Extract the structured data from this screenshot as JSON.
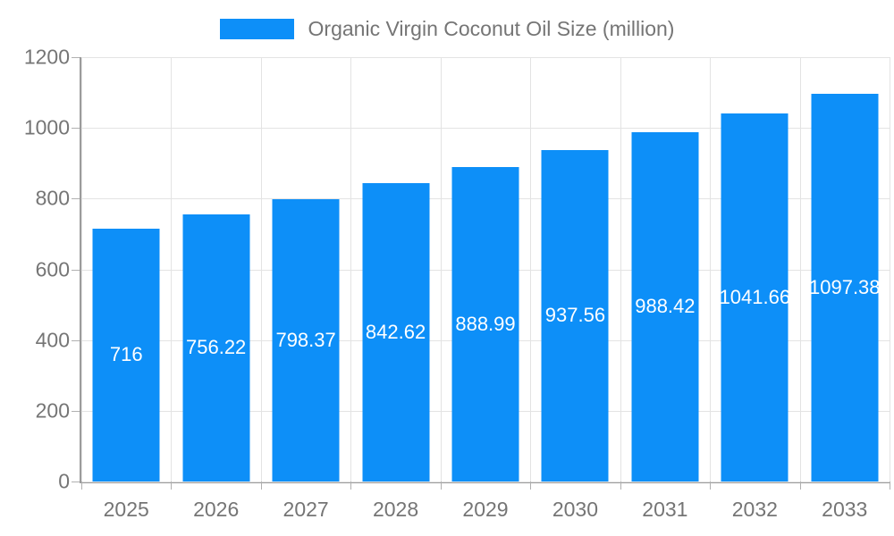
{
  "legend": {
    "items": [
      {
        "label": "Organic Virgin Coconut Oil Size (million)",
        "swatch_color": "#0D8FF8"
      }
    ]
  },
  "chart_data": {
    "type": "bar",
    "title": "",
    "xlabel": "",
    "ylabel": "",
    "categories": [
      "2025",
      "2026",
      "2027",
      "2028",
      "2029",
      "2030",
      "2031",
      "2032",
      "2033"
    ],
    "series": [
      {
        "name": "Organic Virgin Coconut Oil Size (million)",
        "values": [
          716,
          756.22,
          798.37,
          842.62,
          888.99,
          937.56,
          988.42,
          1041.66,
          1097.38
        ]
      }
    ],
    "bar_value_labels": [
      "716",
      "756.22",
      "798.37",
      "842.62",
      "888.99",
      "937.56",
      "988.42",
      "1041.66",
      "1097.38"
    ],
    "ylim": [
      0,
      1200
    ],
    "yticks": [
      0,
      200,
      400,
      600,
      800,
      1000,
      1200
    ],
    "grid": true,
    "legend_position": "top-center",
    "colors": {
      "bar": "#0D8FF8",
      "bar_label": "#ffffff",
      "axis_text": "#757575",
      "axis_line": "#9b9b9b",
      "gridline": "#e3e3e3",
      "tick": "#b0b0b0",
      "background": "#ffffff"
    }
  }
}
